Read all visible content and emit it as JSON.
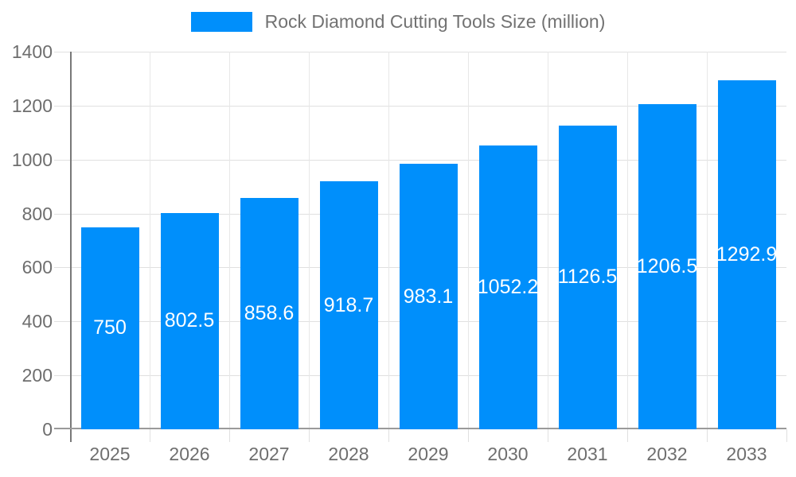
{
  "legend": {
    "label": "Rock Diamond Cutting Tools Size (million)",
    "marker_color": "#008FFB"
  },
  "chart_data": {
    "type": "bar",
    "title": "Rock Diamond Cutting Tools Size (million)",
    "categories": [
      "2025",
      "2026",
      "2027",
      "2028",
      "2029",
      "2030",
      "2031",
      "2032",
      "2033"
    ],
    "values": [
      750,
      802.5,
      858.6,
      918.7,
      983.1,
      1052.2,
      1126.5,
      1206.5,
      1292.9
    ],
    "bar_labels": [
      "750",
      "802.5",
      "858.6",
      "918.7",
      "983.1",
      "1052.2",
      "1126.5",
      "1206.5",
      "1292.9"
    ],
    "xlabel": "",
    "ylabel": "",
    "ylim": [
      0,
      1400
    ],
    "ytick_step": 200,
    "yticks": [
      "0",
      "200",
      "400",
      "600",
      "800",
      "1000",
      "1200",
      "1400"
    ],
    "grid": true,
    "legend_position": "top",
    "colors": {
      "bar": "#008FFB",
      "grid": "#e0e0e0",
      "y_axis_line": "#787878",
      "x_axis_line": "#9a9a9a",
      "axis_label": "#6e6e6e",
      "value_label": "#ffffff",
      "legend_text": "#727272"
    }
  }
}
